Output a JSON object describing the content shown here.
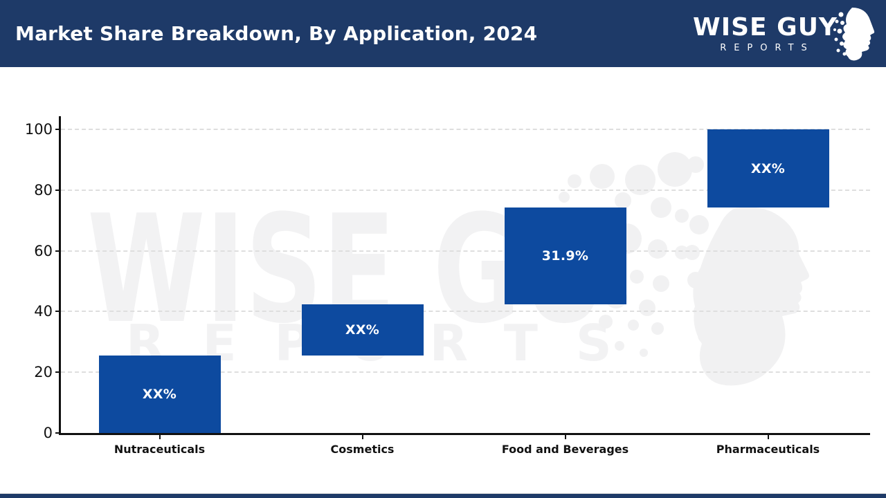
{
  "header": {
    "title": "Market Share Breakdown, By Application, 2024",
    "logo": {
      "line1": "WISE GUY",
      "line2": "REPORTS"
    }
  },
  "watermark": {
    "line1": "WISE GU",
    "line2": "REPORTS"
  },
  "chart_data": {
    "type": "bar",
    "subtype": "floating-waterfall",
    "title": "Market Share Breakdown, By Application, 2024",
    "categories": [
      "Nutraceuticals",
      "Cosmetics",
      "Food and Beverages",
      "Pharmaceuticals"
    ],
    "bars": [
      {
        "category": "Nutraceuticals",
        "start": 0,
        "end": 25.5,
        "label": "XX%"
      },
      {
        "category": "Cosmetics",
        "start": 25.5,
        "end": 42.3,
        "label": "XX%"
      },
      {
        "category": "Food and Beverages",
        "start": 42.3,
        "end": 74.2,
        "label": "31.9%"
      },
      {
        "category": "Pharmaceuticals",
        "start": 74.2,
        "end": 100,
        "label": "XX%"
      }
    ],
    "ylim": [
      0,
      108
    ],
    "yticks": [
      0,
      20,
      40,
      60,
      80,
      100
    ],
    "xlabel": "",
    "ylabel": "",
    "grid": "horizontal-dashed",
    "legend": "none"
  },
  "colors": {
    "header_bg": "#1e3a68",
    "footer_strip": "#1e3a68",
    "bar": "#0d4a9f",
    "bar_label_text": "#ffffff",
    "grid": "#dedede",
    "axis": "#111111",
    "watermark": "#f2f2f3",
    "title_text": "#ffffff"
  }
}
